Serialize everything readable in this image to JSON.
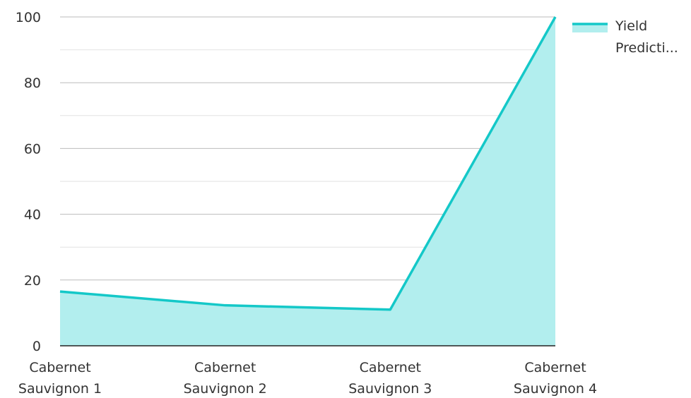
{
  "chart_data": {
    "type": "area",
    "categories": [
      [
        "Cabernet",
        "Sauvignon 1"
      ],
      [
        "Cabernet",
        "Sauvignon 2"
      ],
      [
        "Cabernet",
        "Sauvignon 3"
      ],
      [
        "Cabernet",
        "Sauvignon 4"
      ]
    ],
    "series": [
      {
        "name_lines": [
          "Yield",
          "Predicti..."
        ],
        "values": [
          16.5,
          12.3,
          11.0,
          100
        ]
      }
    ],
    "ylim": [
      0,
      100
    ],
    "yticks": [
      0,
      20,
      40,
      60,
      80,
      100
    ],
    "minor_gridlines": true,
    "legend_position": "top-right"
  },
  "colors": {
    "line": "#14C8C8",
    "fill": "#B2EEEE",
    "major_grid": "#BBBBBB",
    "minor_grid": "#E2E2E2",
    "axis": "#222222"
  }
}
